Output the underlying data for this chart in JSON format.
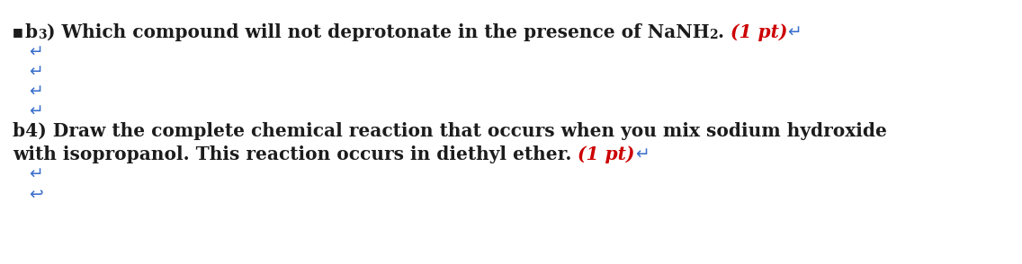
{
  "background_color": "#ffffff",
  "fig_width": 11.36,
  "fig_height": 2.94,
  "dpi": 100,
  "bullet": "■",
  "line_b4_1": "b4) Draw the complete chemical reaction that occurs when you mix sodium hydroxide",
  "line_b4_2": "with isopropanol. This reaction occurs in diethyl ether. ",
  "line_b4_italic": "(1 pt)",
  "arrow": "↵",
  "arrow2": "↩",
  "text_color": "#1c1c1c",
  "blue_color": "#3a6fcc",
  "red_color": "#cc0000",
  "font_size_main": 14.5,
  "font_size_sub": 10.0,
  "font_size_arrow": 13.5,
  "font_size_bullet": 9
}
